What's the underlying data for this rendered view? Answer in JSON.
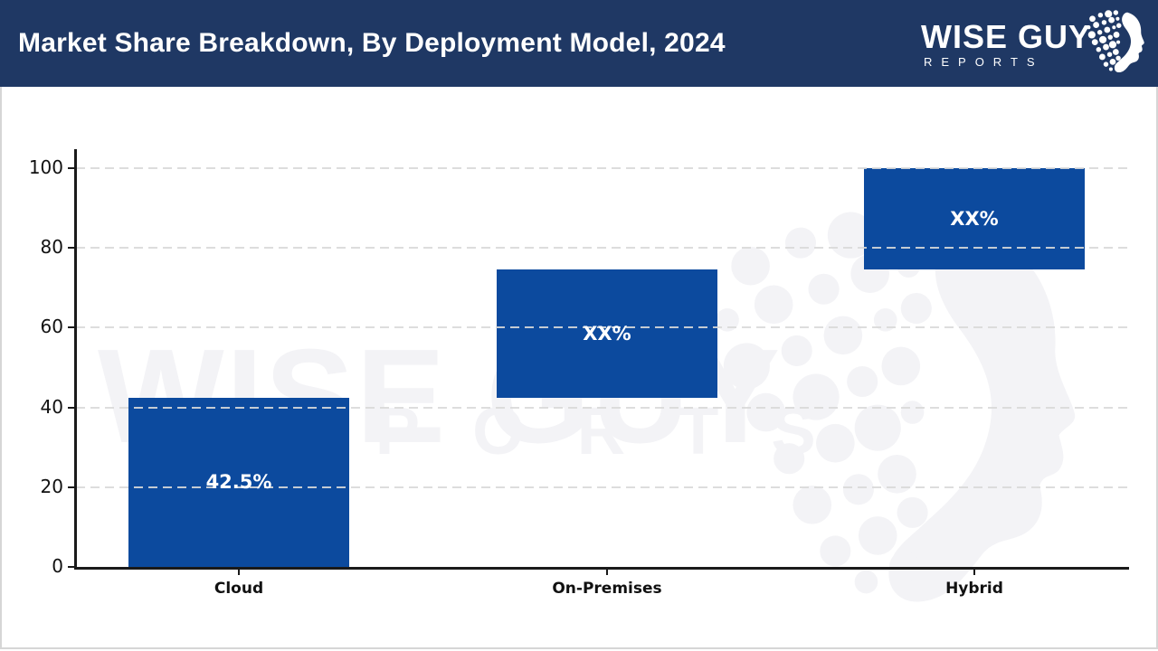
{
  "header": {
    "title": "Market Share Breakdown, By Deployment Model, 2024",
    "logo": {
      "name": "WISE GUY",
      "sub": "REPORTS"
    }
  },
  "watermark": {
    "name": "WISE GUY",
    "sub": "REPORTS"
  },
  "chart_data": {
    "type": "bar",
    "subtype": "segmented-waterfall",
    "title": "Market Share Breakdown, By Deployment Model, 2024",
    "categories": [
      "Cloud",
      "On-Premises",
      "Hybrid"
    ],
    "segments": [
      {
        "category": "Cloud",
        "start": 0,
        "end": 42.5,
        "label": "42.5%"
      },
      {
        "category": "On-Premises",
        "start": 42.5,
        "end": 74.5,
        "label": "XX%"
      },
      {
        "category": "Hybrid",
        "start": 74.5,
        "end": 100,
        "label": "XX%"
      }
    ],
    "ylim": [
      0,
      100
    ],
    "yticks": [
      0,
      20,
      40,
      60,
      80,
      100
    ],
    "grid": "horizontal-dashed",
    "legend": "none",
    "colors": {
      "bar": "#0c4a9e",
      "bar_label": "#ffffff",
      "grid": "#d9d9d9",
      "axis": "#1a1a1a",
      "tick_label": "#111111",
      "header_bg": "#1f3864",
      "header_text": "#ffffff",
      "watermark": "#f3f3f6"
    }
  }
}
